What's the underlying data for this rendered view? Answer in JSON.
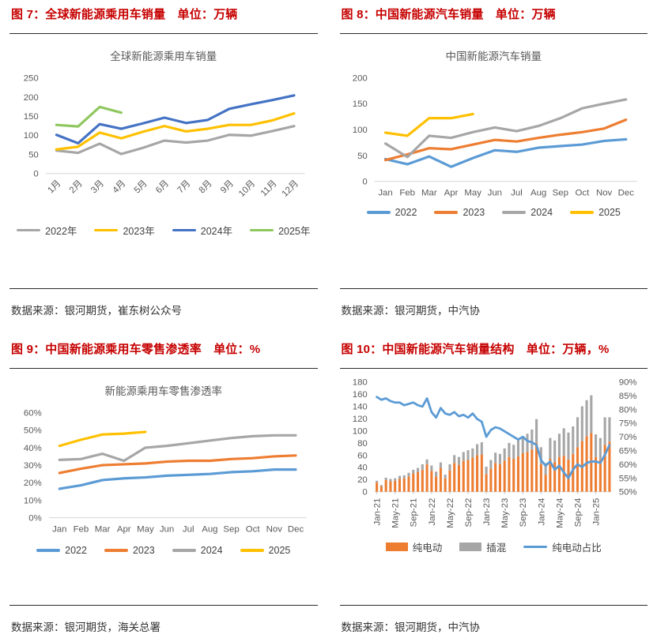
{
  "panels": [
    {
      "heading": "图 7：全球新能源乘用车销量　单位：万辆",
      "source": "数据来源：银河期货，崔东树公众号"
    },
    {
      "heading": "图 8：中国新能源汽车销量　单位：万辆",
      "source": "数据来源：银河期货，中汽协"
    },
    {
      "heading": "图 9：中国新能源乘用车零售渗透率　单位：%",
      "source": "数据来源：银河期货，海关总署"
    },
    {
      "heading": "图 10：中国新能源汽车销量结构　单位：万辆，%",
      "source": "数据来源：银河期货，中汽协"
    }
  ],
  "colors": {
    "heading_red": "#c60000",
    "axis_text": "#595959",
    "blue_dark": "#4472C4",
    "blue_light": "#5B9BD5",
    "orange": "#ED7D31",
    "gray": "#A6A6A6",
    "yellow": "#FFC000",
    "green": "#8FC75F"
  },
  "chart_data": [
    {
      "type": "line",
      "title": "全球新能源乘用车销量",
      "xlabel": "",
      "ylabel": "",
      "ylim": [
        0,
        250
      ],
      "ystep": 50,
      "y_unit": "",
      "grid": false,
      "legend_position": "bottom",
      "x_label_rotation": -45,
      "categories": [
        "1月",
        "2月",
        "3月",
        "4月",
        "5月",
        "6月",
        "7月",
        "8月",
        "9月",
        "10月",
        "11月",
        "12月"
      ],
      "series": [
        {
          "name": "2022年",
          "color": "#A6A6A6",
          "values": [
            60,
            54,
            78,
            51,
            67,
            86,
            81,
            86,
            101,
            99,
            111,
            124
          ]
        },
        {
          "name": "2023年",
          "color": "#FFC000",
          "values": [
            63,
            70,
            107,
            92,
            109,
            124,
            110,
            117,
            127,
            127,
            139,
            157
          ]
        },
        {
          "name": "2024年",
          "color": "#4472C4",
          "values": [
            101,
            79,
            129,
            117,
            131,
            146,
            132,
            140,
            169,
            181,
            192,
            204
          ]
        },
        {
          "name": "2025年",
          "color": "#8FC75F",
          "values": [
            127,
            123,
            174,
            159,
            null,
            null,
            null,
            null,
            null,
            null,
            null,
            null
          ]
        }
      ]
    },
    {
      "type": "line",
      "title": "中国新能源汽车销量",
      "xlabel": "",
      "ylabel": "",
      "ylim": [
        0,
        200
      ],
      "ystep": 50,
      "y_unit": "",
      "grid": false,
      "legend_position": "bottom",
      "x_label_rotation": 0,
      "categories": [
        "Jan",
        "Feb",
        "Mar",
        "Apr",
        "May",
        "Jun",
        "Jul",
        "Aug",
        "Sep",
        "Oct",
        "Nov",
        "Dec"
      ],
      "series": [
        {
          "name": "2022",
          "color": "#5B9BD5",
          "values": [
            43,
            33,
            48,
            28,
            45,
            60,
            57,
            65,
            68,
            71,
            78,
            81
          ]
        },
        {
          "name": "2023",
          "color": "#ED7D31",
          "values": [
            41,
            52,
            64,
            62,
            71,
            80,
            77,
            84,
            90,
            95,
            102,
            119
          ]
        },
        {
          "name": "2024",
          "color": "#A6A6A6",
          "values": [
            73,
            47,
            88,
            84,
            95,
            104,
            97,
            107,
            122,
            141,
            150,
            158
          ]
        },
        {
          "name": "2025",
          "color": "#FFC000",
          "values": [
            94,
            88,
            122,
            122,
            130,
            null,
            null,
            null,
            null,
            null,
            null,
            null
          ]
        }
      ]
    },
    {
      "type": "line",
      "title": "新能源乘用车零售渗透率",
      "xlabel": "",
      "ylabel": "",
      "ylim": [
        0,
        60
      ],
      "ystep": 10,
      "y_unit": "%",
      "grid": false,
      "legend_position": "bottom",
      "x_label_rotation": 0,
      "categories": [
        "Jan",
        "Feb",
        "Mar",
        "Apr",
        "May",
        "Jun",
        "Jul",
        "Aug",
        "Sep",
        "Oct",
        "Nov",
        "Dec"
      ],
      "series": [
        {
          "name": "2022",
          "color": "#5B9BD5",
          "values": [
            16.5,
            18.5,
            21.5,
            22.5,
            23,
            24,
            24.5,
            25,
            26,
            26.5,
            27.5,
            27.5
          ]
        },
        {
          "name": "2023",
          "color": "#ED7D31",
          "values": [
            25.5,
            28,
            30,
            30.5,
            31,
            32,
            32.5,
            32.5,
            33.5,
            34,
            35,
            35.5
          ]
        },
        {
          "name": "2024",
          "color": "#A6A6A6",
          "values": [
            33,
            33.5,
            36.5,
            32.5,
            40,
            41,
            42.5,
            44,
            45.5,
            46.5,
            47,
            47
          ]
        },
        {
          "name": "2025",
          "color": "#FFC000",
          "values": [
            41,
            44.5,
            47.5,
            48,
            49,
            null,
            null,
            null,
            null,
            null,
            null,
            null
          ]
        }
      ]
    },
    {
      "type": "combo_stacked_bar_line",
      "title": "",
      "xlabel": "",
      "ylabel": "",
      "ylim_left": [
        0,
        180
      ],
      "ystep_left": 20,
      "ylim_right": [
        50,
        90
      ],
      "ystep_right": 5,
      "right_unit": "%",
      "grid": false,
      "legend_position": "bottom",
      "x_label_every": 4,
      "categories": [
        "Jan-21",
        "Feb-21",
        "Mar-21",
        "Apr-21",
        "May-21",
        "Jun-21",
        "Jul-21",
        "Aug-21",
        "Sep-21",
        "Oct-21",
        "Nov-21",
        "Dec-21",
        "Jan-22",
        "Feb-22",
        "Mar-22",
        "Apr-22",
        "May-22",
        "Jun-22",
        "Jul-22",
        "Aug-22",
        "Sep-22",
        "Oct-22",
        "Nov-22",
        "Dec-22",
        "Jan-23",
        "Feb-23",
        "Mar-23",
        "Apr-23",
        "May-23",
        "Jun-23",
        "Jul-23",
        "Aug-23",
        "Sep-23",
        "Oct-23",
        "Nov-23",
        "Dec-23",
        "Jan-24",
        "Feb-24",
        "Mar-24",
        "Apr-24",
        "May-24",
        "Jun-24",
        "Jul-24",
        "Aug-24",
        "Sep-24",
        "Oct-24",
        "Nov-24",
        "Dec-24",
        "Jan-25",
        "Feb-25",
        "Mar-25",
        "Apr-25"
      ],
      "bar_series": [
        {
          "name": "纯电动",
          "color": "#ED7D31",
          "values": [
            15,
            9,
            19,
            17,
            18,
            21,
            22,
            25,
            30,
            32,
            36,
            45,
            34,
            25,
            39,
            22,
            35,
            47,
            44,
            51,
            52,
            56,
            60,
            61,
            29,
            38,
            47,
            45,
            51,
            57,
            54,
            58,
            63,
            65,
            69,
            80,
            45,
            28,
            54,
            49,
            57,
            59,
            53,
            62,
            73,
            83,
            91,
            96,
            57,
            53,
            77,
            82
          ]
        },
        {
          "name": "插混",
          "color": "#A6A6A6",
          "values": [
            3,
            2,
            4,
            4,
            4,
            5,
            5,
            6,
            6,
            7,
            9,
            8,
            9,
            8,
            9,
            6,
            10,
            13,
            13,
            14,
            16,
            15,
            18,
            20,
            12,
            14,
            17,
            17,
            20,
            23,
            23,
            26,
            27,
            30,
            33,
            39,
            28,
            19,
            34,
            35,
            38,
            45,
            44,
            45,
            49,
            57,
            59,
            62,
            37,
            35,
            45,
            40
          ]
        }
      ],
      "line_series": [
        {
          "name": "纯电动占比",
          "color": "#5B9BD5",
          "axis": "right",
          "values": [
            84.5,
            83.5,
            84,
            83,
            82.5,
            82.5,
            81.5,
            82,
            82.5,
            81.5,
            81,
            84,
            79,
            77,
            80.5,
            78.5,
            78,
            79,
            77.5,
            78,
            77,
            78.5,
            76.5,
            75.5,
            70,
            72.5,
            73.5,
            73,
            72,
            71,
            70,
            69,
            70,
            68.5,
            68,
            67,
            61.5,
            59.5,
            61,
            58,
            59.5,
            57,
            55,
            58,
            60,
            59,
            60.5,
            61,
            61,
            60.5,
            63.5,
            67
          ]
        }
      ]
    }
  ]
}
